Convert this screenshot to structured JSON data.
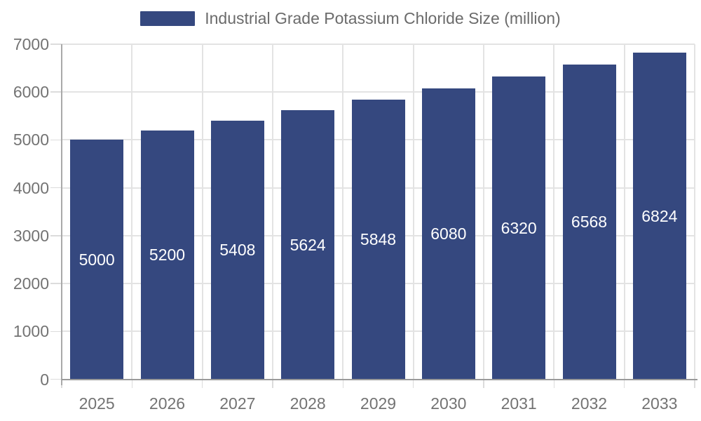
{
  "chart_data": {
    "type": "bar",
    "title": "Industrial Grade Potassium Chloride Size (million)",
    "legend": {
      "label": "Industrial Grade Potassium Chloride Size (million)",
      "position": "top-center"
    },
    "categories": [
      "2025",
      "2026",
      "2027",
      "2028",
      "2029",
      "2030",
      "2031",
      "2032",
      "2033"
    ],
    "values": [
      5000,
      5200,
      5408,
      5624,
      5848,
      6080,
      6320,
      6568,
      6824
    ],
    "xlabel": "",
    "ylabel": "",
    "ylim": [
      0,
      7000
    ],
    "yticks": [
      0,
      1000,
      2000,
      3000,
      4000,
      5000,
      6000,
      7000
    ],
    "grid": true,
    "value_labels": "inside-center",
    "colors": {
      "bar": "#35487F",
      "value_label": "#ffffff",
      "grid_line": "#e3e3e3",
      "tick_line": "#dcdcdc",
      "y_axis_line": "#a9a9a9",
      "x_axis_line": "#9a9a9a",
      "axis_label": "#737373",
      "legend_text": "#6b6b6b",
      "background": "#ffffff"
    }
  }
}
